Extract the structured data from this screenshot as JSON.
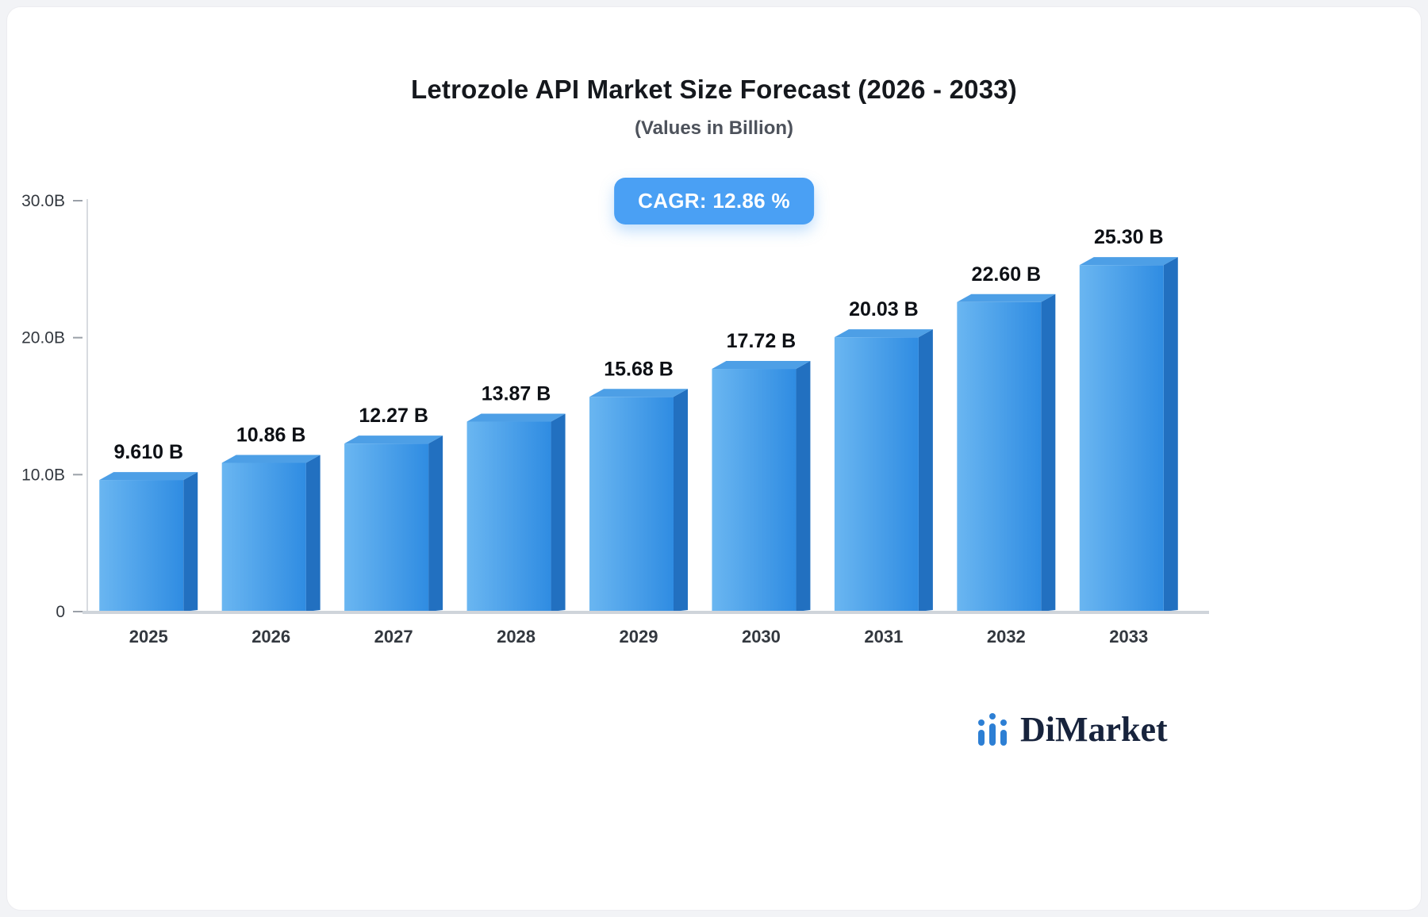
{
  "title": "Letrozole API Market Size Forecast (2026 - 2033)",
  "subtitle": "(Values in Billion)",
  "badge": {
    "label": "CAGR: 12.86 %"
  },
  "brand": {
    "name": "DiMarket"
  },
  "chart_data": {
    "type": "bar",
    "title": "Letrozole API Market Size Forecast (2026 - 2033)",
    "subtitle": "(Values in Billion)",
    "xlabel": "",
    "ylabel": "",
    "categories": [
      "2025",
      "2026",
      "2027",
      "2028",
      "2029",
      "2030",
      "2031",
      "2032",
      "2033"
    ],
    "values": [
      9.61,
      10.86,
      12.27,
      13.87,
      15.68,
      17.72,
      20.03,
      22.6,
      25.3
    ],
    "value_labels": [
      "9.610 B",
      "10.86 B",
      "12.27 B",
      "13.87 B",
      "15.68 B",
      "17.72 B",
      "20.03 B",
      "22.60 B",
      "25.30 B"
    ],
    "ylim": [
      0,
      30
    ],
    "yticks": [
      {
        "label": "30.0B",
        "value": 30
      },
      {
        "label": "20.0B",
        "value": 20
      },
      {
        "label": "10.0B",
        "value": 10
      },
      {
        "label": "0",
        "value": 0
      }
    ],
    "legend": null,
    "grid": false,
    "colors": {
      "bar_front_light": "#6ab6f1",
      "bar_front_dark": "#2f8ce2",
      "bar_side": "#2270c0",
      "bar_top": "#4d9fe6",
      "axis_line": "#d8dbe0",
      "baseline": "#cfd4da",
      "value_label": "#0d1015",
      "tick_label": "#33383f",
      "badge_bg": "#4aa0f4"
    }
  }
}
